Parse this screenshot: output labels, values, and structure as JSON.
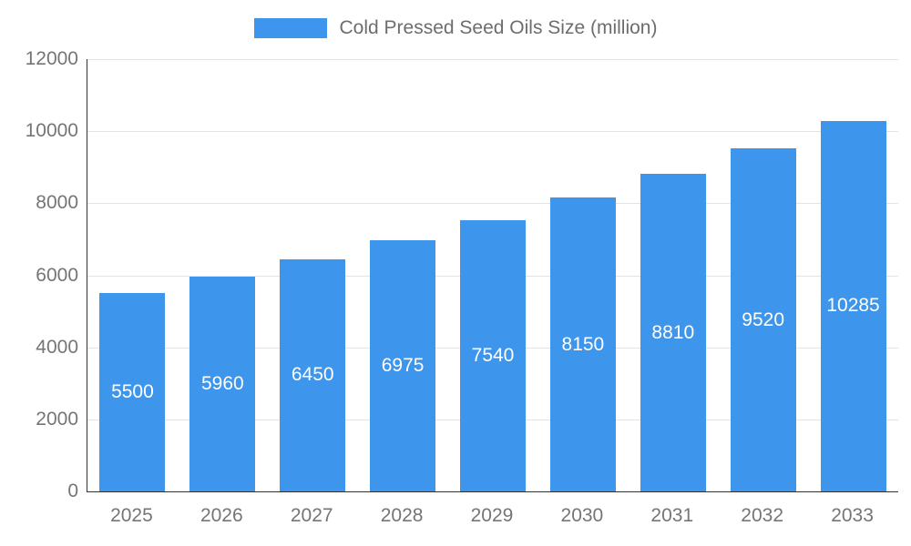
{
  "chart_data": {
    "type": "bar",
    "title": "Cold Pressed Seed Oils Size (million)",
    "categories": [
      "2025",
      "2026",
      "2027",
      "2028",
      "2029",
      "2030",
      "2031",
      "2032",
      "2033"
    ],
    "values": [
      5500,
      5960,
      6450,
      6975,
      7540,
      8150,
      8810,
      9520,
      10285
    ],
    "xlabel": "",
    "ylabel": "",
    "ylim": [
      0,
      12000
    ],
    "yticks": [
      0,
      2000,
      4000,
      6000,
      8000,
      10000,
      12000
    ],
    "grid": true,
    "legend_position": "top",
    "bar_color": "#3E95EC",
    "bar_label_color": "#ffffff",
    "axis_text_color": "#757575",
    "title_color": "#6d6d6d",
    "gridline_color": "#e3e3e3",
    "axis_line_color": "#333333",
    "background_color": "#ffffff"
  }
}
